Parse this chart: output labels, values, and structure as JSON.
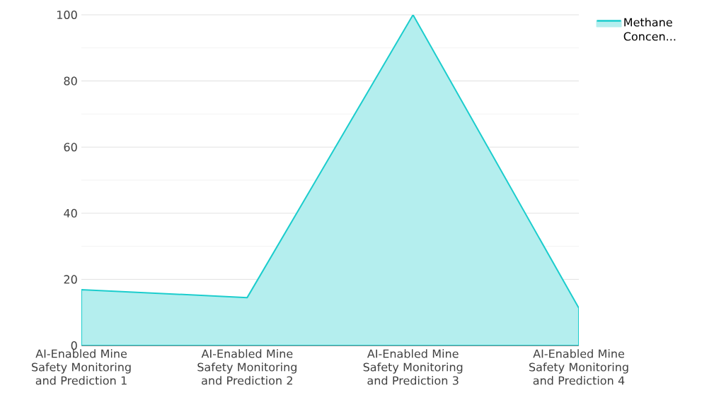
{
  "chart_data": {
    "type": "area",
    "categories": [
      "AI-Enabled Mine Safety Monitoring and Prediction 1",
      "AI-Enabled Mine Safety Monitoring and Prediction 2",
      "AI-Enabled Mine Safety Monitoring and Prediction 3",
      "AI-Enabled Mine Safety Monitoring and Prediction 4"
    ],
    "series": [
      {
        "name": "Methane Concen...",
        "color": "#1ccdcd",
        "values": [
          16.9,
          14.5,
          100,
          11.3
        ]
      }
    ],
    "ylim": [
      0,
      100
    ],
    "yticks": [
      0,
      20,
      40,
      60,
      80,
      100
    ],
    "grid": "y",
    "legend": "top right"
  }
}
